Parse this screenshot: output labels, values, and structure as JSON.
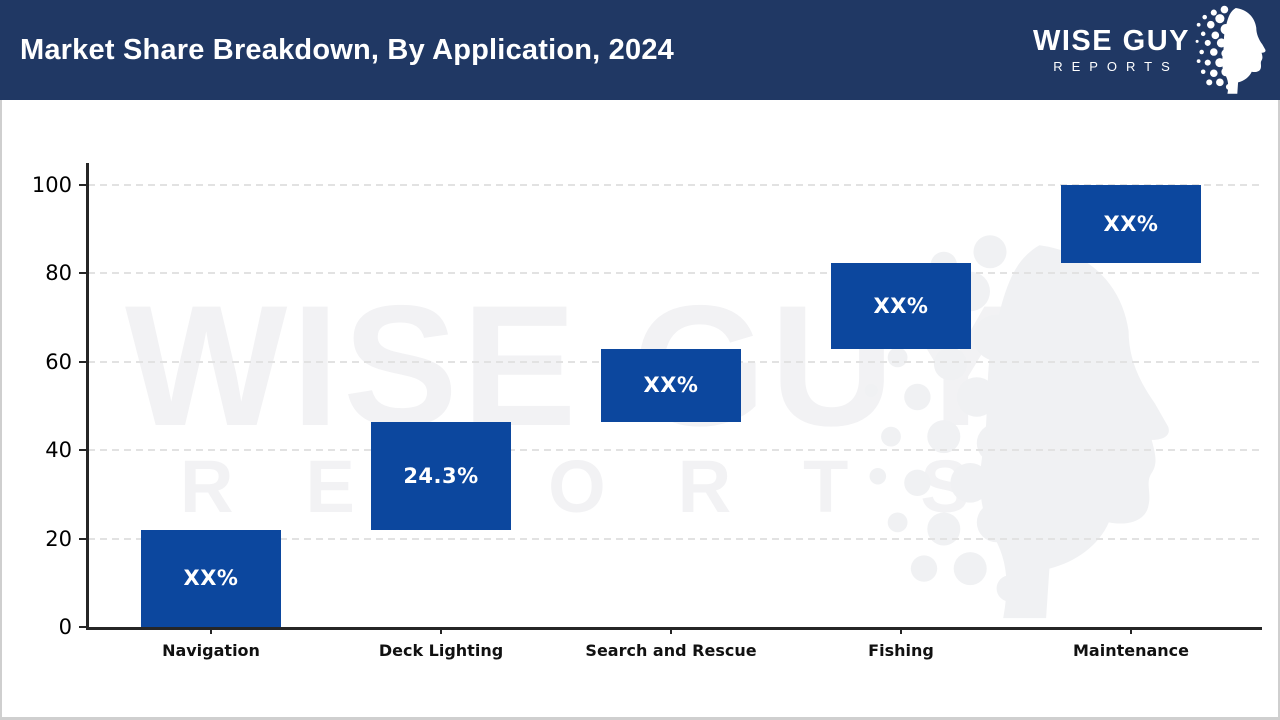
{
  "header": {
    "title": "Market Share Breakdown, By Application, 2024",
    "background_color": "#203864",
    "logo": {
      "line1": "WISE GUY",
      "line2": "REPORTS"
    }
  },
  "watermark": {
    "line1": "WISE GUY",
    "line2": "REPORTS"
  },
  "chart_data": {
    "type": "bar",
    "subtype": "floating-waterfall",
    "title": "Market Share Breakdown, By Application, 2024",
    "categories": [
      "Navigation",
      "Deck Lighting",
      "Search and Rescue",
      "Fishing",
      "Maintenance"
    ],
    "values": [
      22,
      24.3,
      16.7,
      19.3,
      17.7
    ],
    "segments": [
      {
        "category": "Navigation",
        "start": 0,
        "end": 22,
        "label": "XX%"
      },
      {
        "category": "Deck Lighting",
        "start": 22,
        "end": 46.3,
        "label": "24.3%"
      },
      {
        "category": "Search and Rescue",
        "start": 46.3,
        "end": 63,
        "label": "XX%"
      },
      {
        "category": "Fishing",
        "start": 63,
        "end": 82.3,
        "label": "XX%"
      },
      {
        "category": "Maintenance",
        "start": 82.3,
        "end": 100,
        "label": "XX%"
      }
    ],
    "yticks": [
      0,
      20,
      40,
      60,
      80,
      100
    ],
    "ylim": [
      0,
      100
    ],
    "xlabel": "",
    "ylabel": "",
    "bar_color": "#0c479e",
    "grid": "horizontal dashed",
    "legend": "none"
  }
}
